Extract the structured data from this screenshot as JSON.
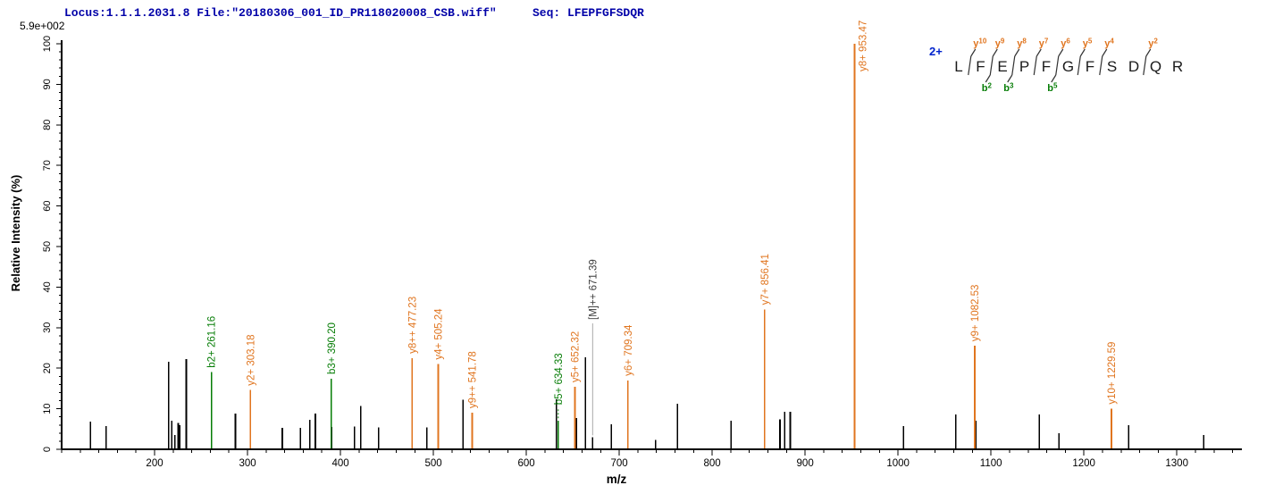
{
  "header": {
    "locus_file": "Locus:1.1.1.2031.8 File:\"20180306_001_ID_PR118020008_CSB.wiff\"",
    "seq": "Seq: LFEPFGFSDQR"
  },
  "colors": {
    "header_text": "#0000a8",
    "charge_text": "#0022cc",
    "y_ion": "#e0751f",
    "b_ion": "#067d06",
    "precursor": "#3a3a3a",
    "precursor_leader": "#aaaaaa",
    "peak_default": "#000000",
    "axis": "#000000"
  },
  "chart_data": {
    "type": "bar",
    "title": "",
    "xlabel": "m/z",
    "ylabel": "Relative Intensity (%)",
    "intensity_scale_label": "5.9e+002",
    "xlim": [
      100,
      1370
    ],
    "ylim": [
      0,
      100
    ],
    "x_tick_interval": 100,
    "x_minor_tick_interval": 20,
    "x_first_label": 200,
    "x_last_label": 1300,
    "y_tick_interval": 10,
    "y_minor_tick_interval": 2,
    "grid": false,
    "labeled_peaks": [
      {
        "ion": "b",
        "label": "b2+ 261.16",
        "mz": 261.16,
        "intensity": 19.0
      },
      {
        "ion": "y",
        "label": "y2+ 303.18",
        "mz": 303.18,
        "intensity": 14.6
      },
      {
        "ion": "b",
        "label": "b3+ 390.20",
        "mz": 390.2,
        "intensity": 17.4
      },
      {
        "ion": "y",
        "label": "y8++ 477.23",
        "mz": 477.23,
        "intensity": 22.5
      },
      {
        "ion": "y",
        "label": "y4+ 505.24",
        "mz": 505.24,
        "intensity": 21.0
      },
      {
        "ion": "y",
        "label": "y9++ 541.78",
        "mz": 541.78,
        "intensity": 9.0
      },
      {
        "ion": "b",
        "label": "b5+ 634.33",
        "mz": 634.33,
        "intensity": 7.0,
        "leader": "dashed"
      },
      {
        "ion": "y",
        "label": "y5+ 652.32",
        "mz": 652.32,
        "intensity": 15.4
      },
      {
        "ion": "precursor",
        "label": "[M]++ 671.39",
        "mz": 671.39,
        "intensity": 3.0,
        "leader": "line"
      },
      {
        "ion": "y",
        "label": "y6+ 709.34",
        "mz": 709.34,
        "intensity": 17.0
      },
      {
        "ion": "y",
        "label": "y7+ 856.41",
        "mz": 856.41,
        "intensity": 34.5
      },
      {
        "ion": "y",
        "label": "y8+ 953.47",
        "mz": 953.47,
        "intensity": 100.0,
        "label_side": "right"
      },
      {
        "ion": "y",
        "label": "y9+ 1082.53",
        "mz": 1082.53,
        "intensity": 25.5
      },
      {
        "ion": "y",
        "label": "y10+ 1229.59",
        "mz": 1229.59,
        "intensity": 10.0
      }
    ],
    "unlabeled_peaks": [
      [
        131,
        6.8
      ],
      [
        148,
        5.7
      ],
      [
        215.1,
        21.6
      ],
      [
        218.3,
        7.0
      ],
      [
        222,
        3.5
      ],
      [
        225.5,
        6.5
      ],
      [
        227.2,
        6.0
      ],
      [
        234.1,
        22.3
      ],
      [
        287,
        8.8
      ],
      [
        337.5,
        5.3
      ],
      [
        357,
        5.3
      ],
      [
        367,
        7.3
      ],
      [
        373,
        8.8
      ],
      [
        390.6,
        5.5
      ],
      [
        415,
        5.6
      ],
      [
        422,
        10.7
      ],
      [
        441,
        5.4
      ],
      [
        493,
        5.4
      ],
      [
        532,
        12.2
      ],
      [
        632.3,
        12.3
      ],
      [
        654,
        7.7
      ],
      [
        663.5,
        22.7
      ],
      [
        691.4,
        6.2
      ],
      [
        739,
        2.3
      ],
      [
        762.5,
        11.2
      ],
      [
        820.4,
        7.0
      ],
      [
        873,
        7.4
      ],
      [
        878,
        9.2
      ],
      [
        884,
        9.2
      ],
      [
        1006,
        5.7
      ],
      [
        1062,
        8.6
      ],
      [
        1083.5,
        7.0
      ],
      [
        1152,
        8.6
      ],
      [
        1173,
        4.0
      ],
      [
        1248,
        6.0
      ],
      [
        1329,
        3.5
      ]
    ]
  },
  "peptide_annotation": {
    "charge_state": "2+",
    "sequence": [
      "L",
      "F",
      "E",
      "P",
      "F",
      "G",
      "F",
      "S",
      "D",
      "Q",
      "R"
    ],
    "cleavages": [
      {
        "after_residue": 1,
        "y_ion": "y10"
      },
      {
        "after_residue": 2,
        "y_ion": "y9",
        "b_ion": "b2"
      },
      {
        "after_residue": 3,
        "y_ion": "y8",
        "b_ion": "b3"
      },
      {
        "after_residue": 4,
        "y_ion": "y7"
      },
      {
        "after_residue": 5,
        "y_ion": "y6",
        "b_ion": "b5"
      },
      {
        "after_residue": 6,
        "y_ion": "y5"
      },
      {
        "after_residue": 7,
        "y_ion": "y4"
      },
      {
        "after_residue": 9,
        "y_ion": "y2"
      }
    ]
  }
}
